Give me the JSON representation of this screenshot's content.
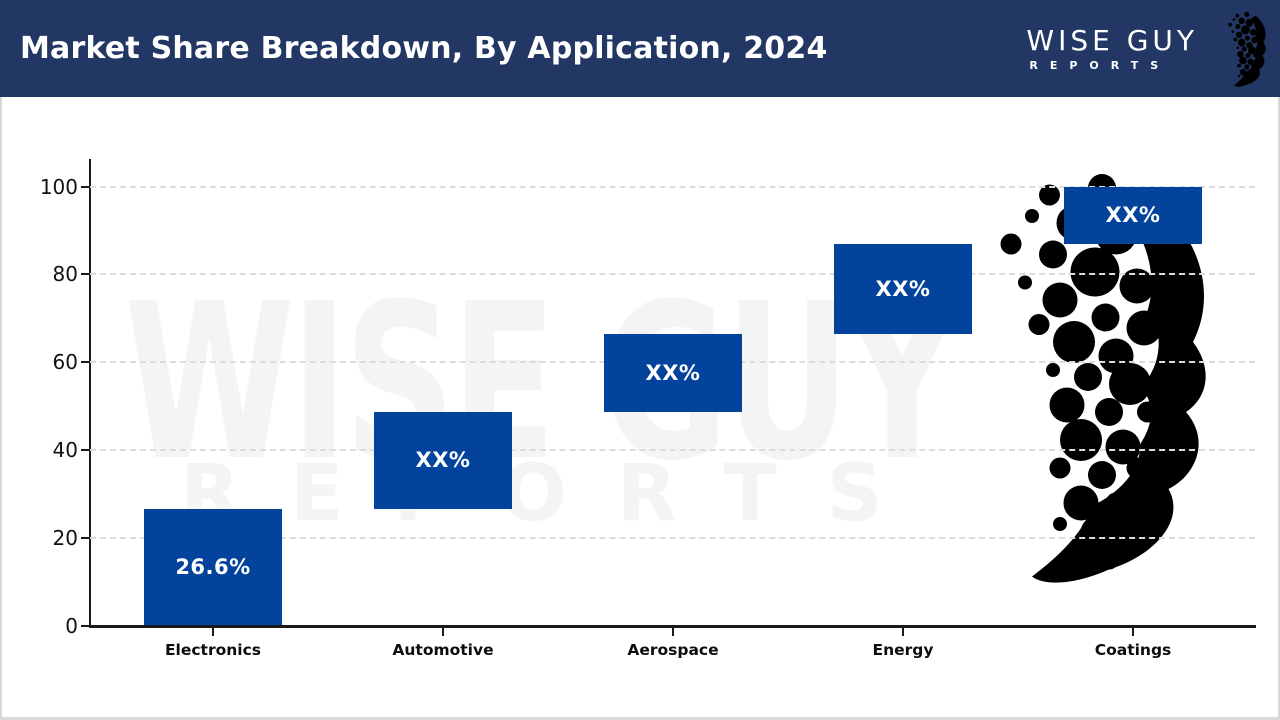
{
  "header": {
    "title": "Market Share Breakdown, By Application, 2024",
    "logo": {
      "line1": "WISE GUY",
      "line2": "REPORTS"
    }
  },
  "watermark": {
    "line1": "WISE GUY",
    "line2": "REPORTS"
  },
  "chart_data": {
    "type": "bar",
    "subtype": "waterfall",
    "title": "Market Share Breakdown, By Application, 2024",
    "categories": [
      "Electronics",
      "Automotive",
      "Aerospace",
      "Energy",
      "Coatings"
    ],
    "segments": [
      {
        "category": "Electronics",
        "start": 0,
        "end": 26.6,
        "label": "26.6%"
      },
      {
        "category": "Automotive",
        "start": 26.6,
        "end": 48.7,
        "label": "XX%"
      },
      {
        "category": "Aerospace",
        "start": 48.7,
        "end": 66.5,
        "label": "XX%"
      },
      {
        "category": "Energy",
        "start": 66.5,
        "end": 86.8,
        "label": "XX%"
      },
      {
        "category": "Coatings",
        "start": 86.8,
        "end": 100,
        "label": "XX%"
      }
    ],
    "yticks": [
      0,
      20,
      40,
      60,
      80,
      100
    ],
    "ylim": [
      0,
      106
    ],
    "xlabel": "",
    "ylabel": "",
    "grid": true,
    "grid_style": "dashed",
    "legend": "none",
    "bar_color": "#04439C",
    "label_color": "#ffffff"
  },
  "colors": {
    "header_bg": "#223764",
    "bar": "#04439C",
    "grid": "#dcdcdc",
    "axis": "#1a1a1a",
    "watermark": "#f3f4f6",
    "border": "#d9d9d9"
  }
}
